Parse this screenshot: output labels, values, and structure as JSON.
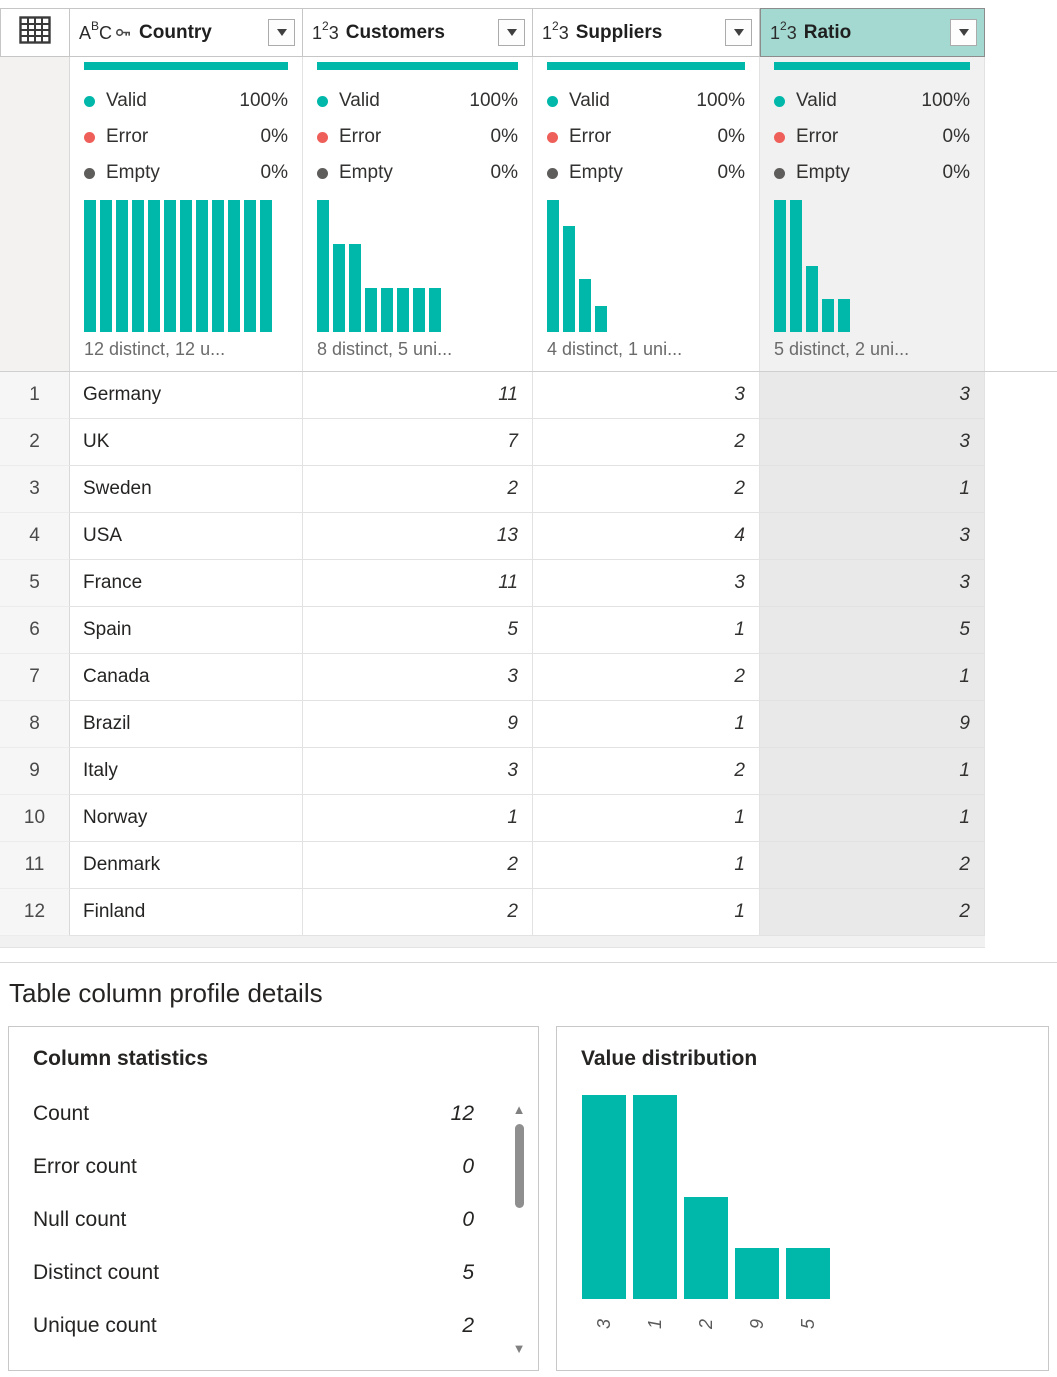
{
  "colors": {
    "accent": "#00b8aa",
    "valid": "#00b8aa",
    "error": "#ef5f5a",
    "empty": "#5f5d5b",
    "selected_header": "#a3d9d0",
    "selected_cell": "#e9e9e9"
  },
  "icons": {
    "text_type": "ABC",
    "numeric_type": "123",
    "scroll_up": "▲",
    "scroll_down": "▼"
  },
  "grid": {
    "quality_labels": {
      "valid": "Valid",
      "error": "Error",
      "empty": "Empty"
    },
    "columns": [
      {
        "name": "Country",
        "type": "text",
        "has_key": true,
        "selected": false,
        "valid": "100%",
        "error": "0%",
        "empty": "0%",
        "distinct_label": "12 distinct, 12 u...",
        "histogram": [
          1,
          1,
          1,
          1,
          1,
          1,
          1,
          1,
          1,
          1,
          1,
          1
        ]
      },
      {
        "name": "Customers",
        "type": "number",
        "has_key": false,
        "selected": false,
        "valid": "100%",
        "error": "0%",
        "empty": "0%",
        "distinct_label": "8 distinct, 5 uni...",
        "histogram": [
          3,
          2,
          2,
          1,
          1,
          1,
          1,
          1
        ]
      },
      {
        "name": "Suppliers",
        "type": "number",
        "has_key": false,
        "selected": false,
        "valid": "100%",
        "error": "0%",
        "empty": "0%",
        "distinct_label": "4 distinct, 1 uni...",
        "histogram": [
          5,
          4,
          2,
          1
        ]
      },
      {
        "name": "Ratio",
        "type": "number",
        "has_key": false,
        "selected": true,
        "valid": "100%",
        "error": "0%",
        "empty": "0%",
        "distinct_label": "5 distinct, 2 uni...",
        "histogram": [
          4,
          4,
          2,
          1,
          1
        ]
      }
    ],
    "rows": [
      {
        "n": "1",
        "cells": [
          "Germany",
          "11",
          "3",
          "3"
        ]
      },
      {
        "n": "2",
        "cells": [
          "UK",
          "7",
          "2",
          "3"
        ]
      },
      {
        "n": "3",
        "cells": [
          "Sweden",
          "2",
          "2",
          "1"
        ]
      },
      {
        "n": "4",
        "cells": [
          "USA",
          "13",
          "4",
          "3"
        ]
      },
      {
        "n": "5",
        "cells": [
          "France",
          "11",
          "3",
          "3"
        ]
      },
      {
        "n": "6",
        "cells": [
          "Spain",
          "5",
          "1",
          "5"
        ]
      },
      {
        "n": "7",
        "cells": [
          "Canada",
          "3",
          "2",
          "1"
        ]
      },
      {
        "n": "8",
        "cells": [
          "Brazil",
          "9",
          "1",
          "9"
        ]
      },
      {
        "n": "9",
        "cells": [
          "Italy",
          "3",
          "2",
          "1"
        ]
      },
      {
        "n": "10",
        "cells": [
          "Norway",
          "1",
          "1",
          "1"
        ]
      },
      {
        "n": "11",
        "cells": [
          "Denmark",
          "2",
          "1",
          "2"
        ]
      },
      {
        "n": "12",
        "cells": [
          "Finland",
          "2",
          "1",
          "2"
        ]
      }
    ]
  },
  "details": {
    "title": "Table column profile details",
    "stats": {
      "title": "Column statistics",
      "items": [
        {
          "label": "Count",
          "value": "12"
        },
        {
          "label": "Error count",
          "value": "0"
        },
        {
          "label": "Null count",
          "value": "0"
        },
        {
          "label": "Distinct count",
          "value": "5"
        },
        {
          "label": "Unique count",
          "value": "2"
        }
      ]
    },
    "distribution": {
      "title": "Value distribution"
    }
  },
  "chart_data": {
    "type": "bar",
    "title": "Value distribution",
    "categories": [
      "3",
      "1",
      "2",
      "9",
      "5"
    ],
    "values": [
      4,
      4,
      2,
      1,
      1
    ],
    "xlabel": "",
    "ylabel": "",
    "ylim": [
      0,
      4
    ],
    "grid": false,
    "legend": false
  }
}
